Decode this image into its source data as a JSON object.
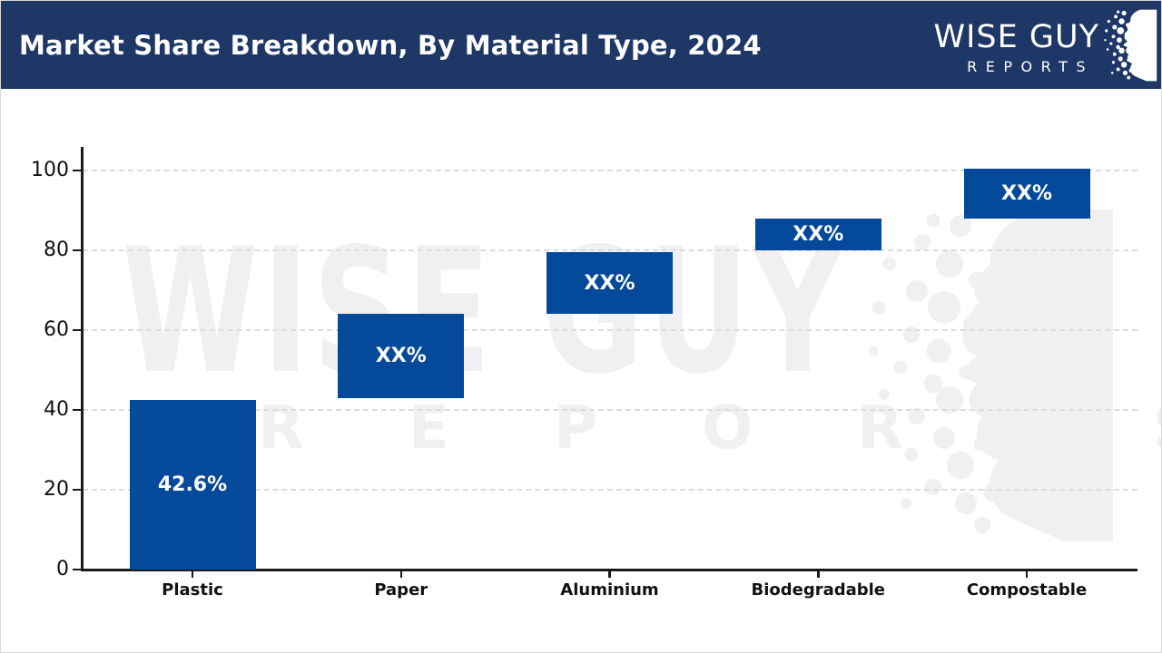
{
  "header": {
    "title": "Market Share Breakdown, By Material Type, 2024",
    "bg_color": "#1f3766",
    "logo": {
      "line1": "WISE GUY",
      "line2": "REPORTS",
      "face_icon": "dotted-face-profile-icon"
    }
  },
  "watermark": {
    "line1": "WISE GUY",
    "line2": "R E P O R T S",
    "face_icon": "dotted-face-profile-icon"
  },
  "chart_data": {
    "type": "bar",
    "subtype": "waterfall",
    "title": "Market Share Breakdown, By Material Type, 2024",
    "categories": [
      "Plastic",
      "Paper",
      "Aluminium",
      "Biodegradable",
      "Compostable"
    ],
    "segments": [
      {
        "category": "Plastic",
        "start": 0,
        "end": 42.6,
        "value_label": "42.6%"
      },
      {
        "category": "Paper",
        "start": 43,
        "end": 64,
        "value_label": "XX%"
      },
      {
        "category": "Aluminium",
        "start": 64,
        "end": 79.5,
        "value_label": "XX%"
      },
      {
        "category": "Biodegradable",
        "start": 80,
        "end": 88,
        "value_label": "XX%"
      },
      {
        "category": "Compostable",
        "start": 88,
        "end": 100.5,
        "value_label": "XX%"
      }
    ],
    "xlabel": "",
    "ylabel": "",
    "yticks": [
      0,
      20,
      40,
      60,
      80,
      100
    ],
    "ylim": [
      0,
      106
    ],
    "grid": "horizontal-dashed",
    "legend": "none",
    "bar_color": "#04499a",
    "value_label_color": "#ffffff",
    "axis_color": "#1a1a1a",
    "gridline_color": "#dcdcdc"
  }
}
